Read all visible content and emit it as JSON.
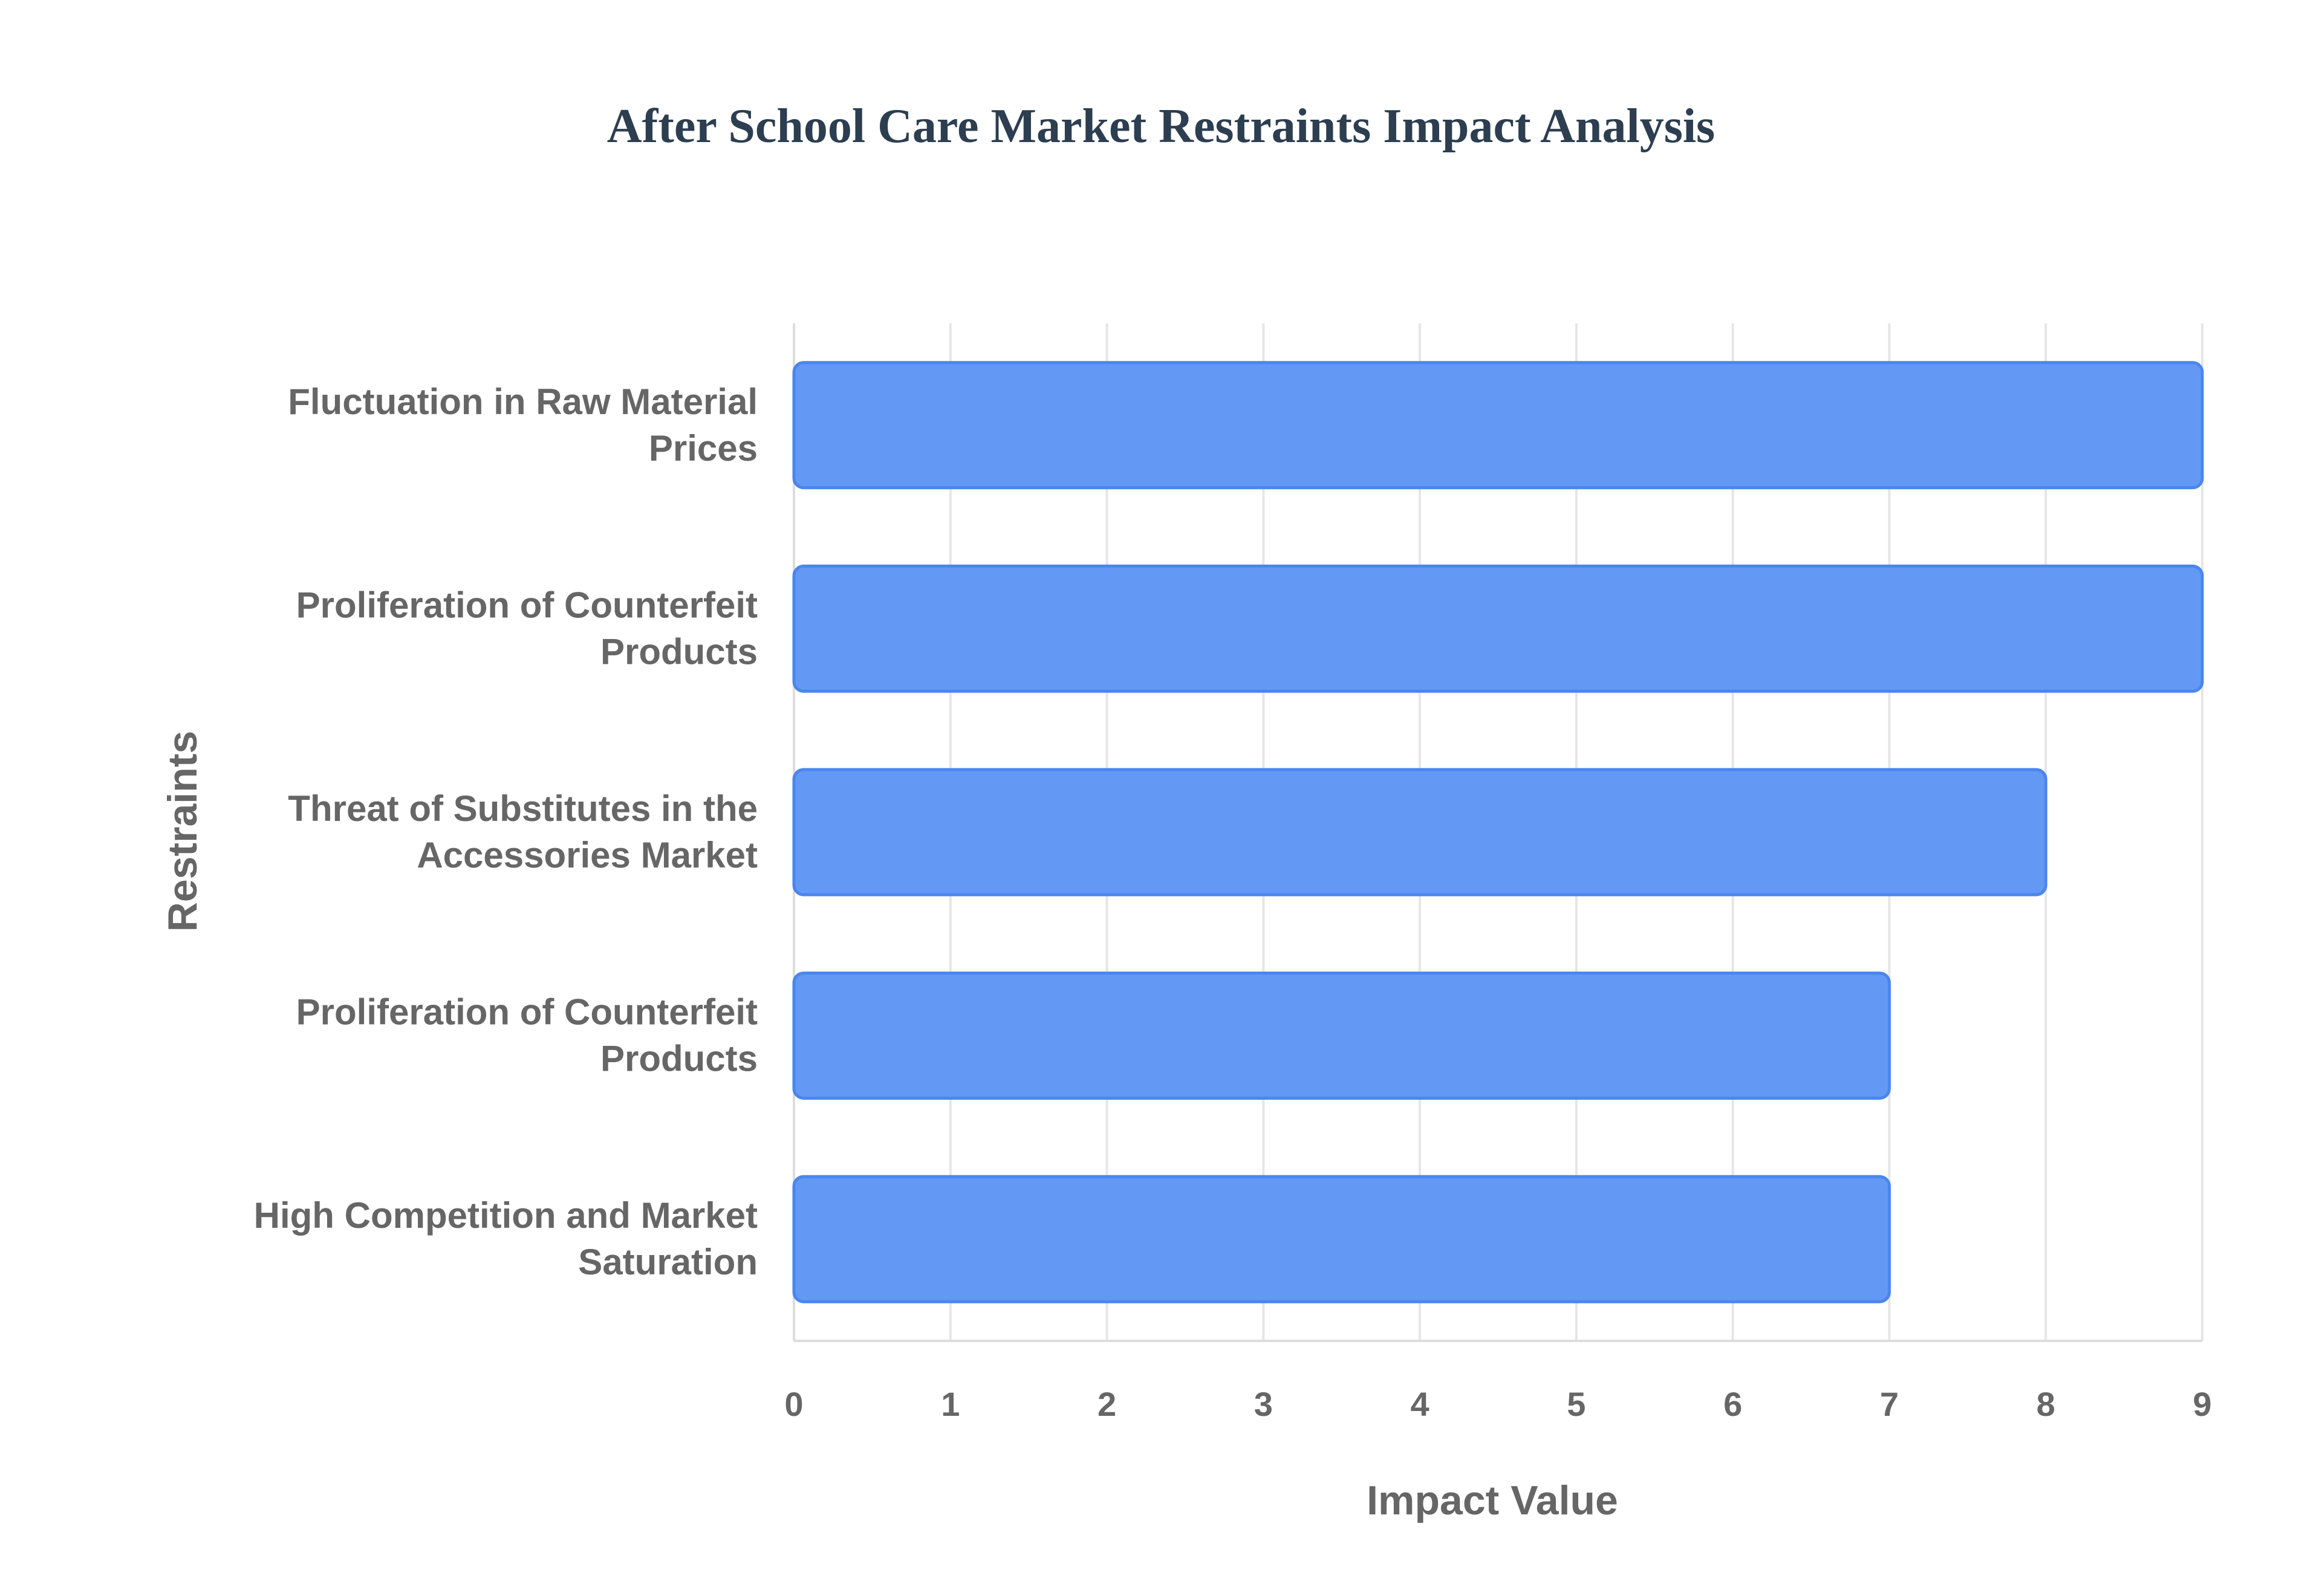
{
  "chart_data": {
    "type": "bar",
    "orientation": "horizontal",
    "title": "After School Care Market Restraints Impact Analysis",
    "xlabel": "Impact Value",
    "ylabel": "Restraints",
    "categories": [
      [
        "Fluctuation in Raw Material",
        "Prices"
      ],
      [
        "Proliferation of Counterfeit",
        "Products"
      ],
      [
        "Threat of Substitutes in the",
        "Accessories Market"
      ],
      [
        "Proliferation of Counterfeit",
        "Products"
      ],
      [
        "High Competition and Market",
        "Saturation"
      ]
    ],
    "values": [
      9,
      9,
      8,
      7,
      7
    ],
    "xlim": [
      0,
      9
    ],
    "xticks": [
      "0",
      "1",
      "2",
      "3",
      "4",
      "5",
      "6",
      "7",
      "8",
      "9"
    ],
    "grid": true,
    "colors": {
      "bar_fill": "#6399f5",
      "bar_stroke": "#4a86ee",
      "title": "#2c3e50",
      "label": "#666666",
      "grid": "#e6e6e6"
    }
  }
}
